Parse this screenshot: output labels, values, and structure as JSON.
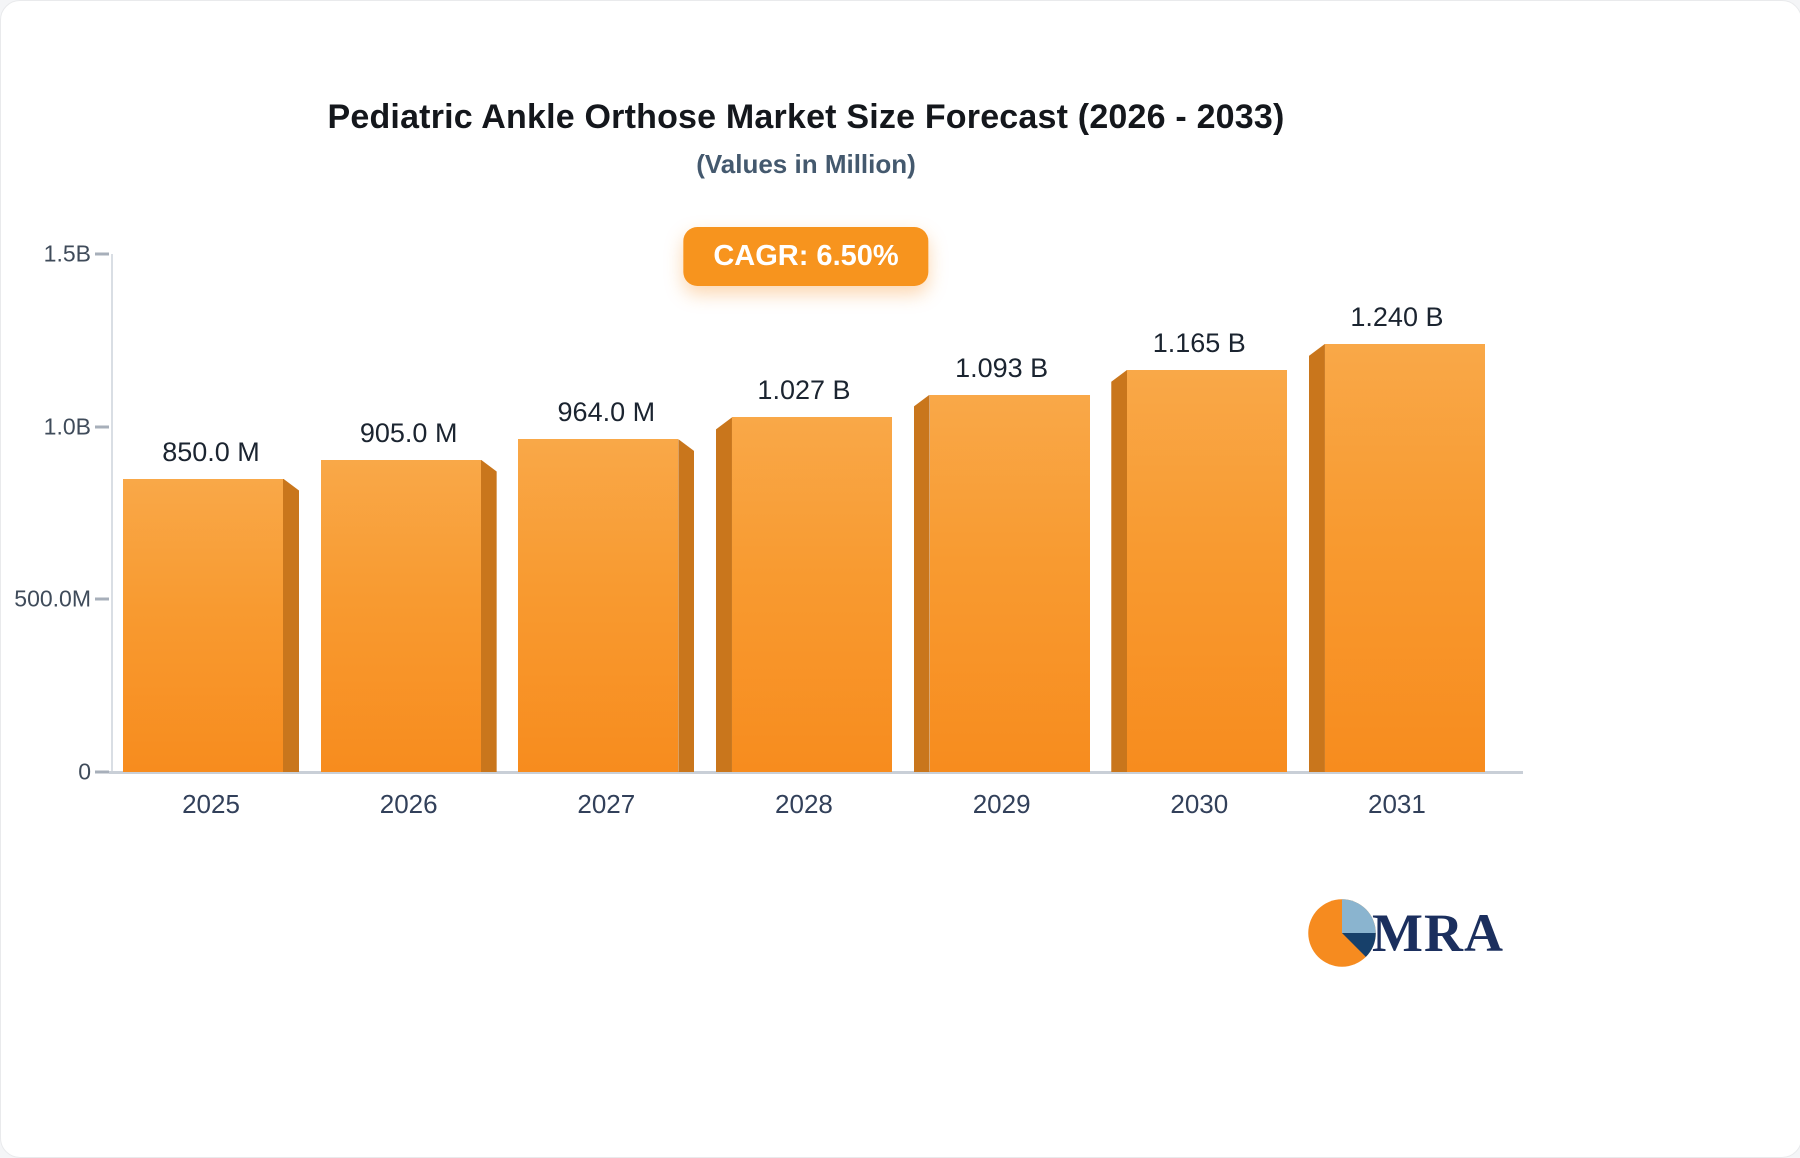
{
  "chart_data": {
    "type": "bar",
    "title": "Pediatric Ankle Orthose Market Size Forecast (2026 - 2033)",
    "subtitle": "(Values in Million)",
    "annotation": "CAGR: 6.50%",
    "categories": [
      "2025",
      "2026",
      "2027",
      "2028",
      "2029",
      "2030",
      "2031"
    ],
    "values_millions": [
      850,
      905,
      964,
      1027,
      1093,
      1165,
      1240
    ],
    "value_labels": [
      "850.0 M",
      "905.0 M",
      "964.0 M",
      "1.027 B",
      "1.093 B",
      "1.165 B",
      "1.240 B"
    ],
    "ylim_millions": [
      0,
      1500
    ],
    "yticks": [
      {
        "value": 1500,
        "label": "1.5B"
      },
      {
        "value": 1000,
        "label": "1.0B"
      },
      {
        "value": 500,
        "label": "500.0M"
      },
      {
        "value": 0,
        "label": "0"
      }
    ],
    "grid": false,
    "legend": "none",
    "colors": {
      "accent": "#f7941e",
      "bar_top": "#f9a848",
      "bar_main": "#f78c1e",
      "bar_side": "#c9761c",
      "logo_navy": "#1b2f5e",
      "logo_blue": "#8ab4cf",
      "logo_dark": "#17406a"
    }
  },
  "logo": {
    "text": "MRA"
  }
}
